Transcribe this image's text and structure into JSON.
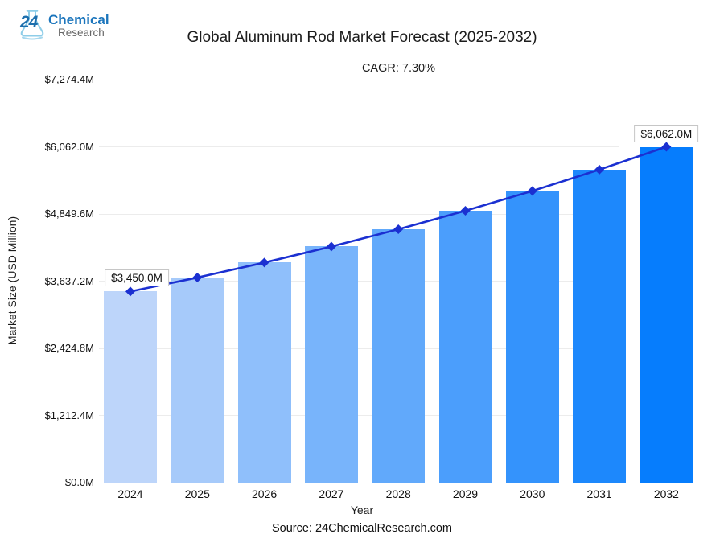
{
  "logo": {
    "number": "24",
    "line1": "Chemical",
    "line2": "Research",
    "accent_blue": "#1b75bc",
    "flask_blue": "#8ecde8",
    "gray": "#666666"
  },
  "source": "Source: 24ChemicalResearch.com",
  "chart_data": {
    "type": "bar",
    "title": "Global Aluminum Rod Market Forecast (2025-2032)",
    "subtitle": "CAGR: 7.30%",
    "cagr": "7.30%",
    "xlabel": "Year",
    "ylabel": "Market Size (USD Million)",
    "categories": [
      "2024",
      "2025",
      "2026",
      "2027",
      "2028",
      "2029",
      "2030",
      "2031",
      "2032"
    ],
    "values": [
      3450.0,
      3701.9,
      3972.1,
      4262.1,
      4573.2,
      4907.0,
      5265.2,
      5649.6,
      6062.0
    ],
    "line_overlay": true,
    "line_values": [
      3450.0,
      3701.9,
      3972.1,
      4262.1,
      4573.2,
      4907.0,
      5265.2,
      5649.6,
      6062.0
    ],
    "ylim": [
      0,
      7274.4
    ],
    "grid": true,
    "legend": "none",
    "yticks": [
      {
        "value": 0,
        "label": "$0.0M"
      },
      {
        "value": 1212.4,
        "label": "$1,212.4M"
      },
      {
        "value": 2424.8,
        "label": "$2,424.8M"
      },
      {
        "value": 3637.2,
        "label": "$3,637.2M"
      },
      {
        "value": 4849.6,
        "label": "$4,849.6M"
      },
      {
        "value": 6062.0,
        "label": "$6,062.0M"
      },
      {
        "value": 7274.4,
        "label": "$7,274.4M"
      }
    ],
    "annotations": [
      {
        "category": "2024",
        "index": 0,
        "text": "$3,450.0M"
      },
      {
        "category": "2032",
        "index": 8,
        "text": "$6,062.0M"
      }
    ],
    "bar_colors": [
      "#bdd5fa",
      "#a6cafa",
      "#8fbffb",
      "#78b4fb",
      "#61a9fb",
      "#4b9efc",
      "#3493fc",
      "#1d88fc",
      "#067dfd"
    ],
    "line_color": "#1b30d1"
  }
}
